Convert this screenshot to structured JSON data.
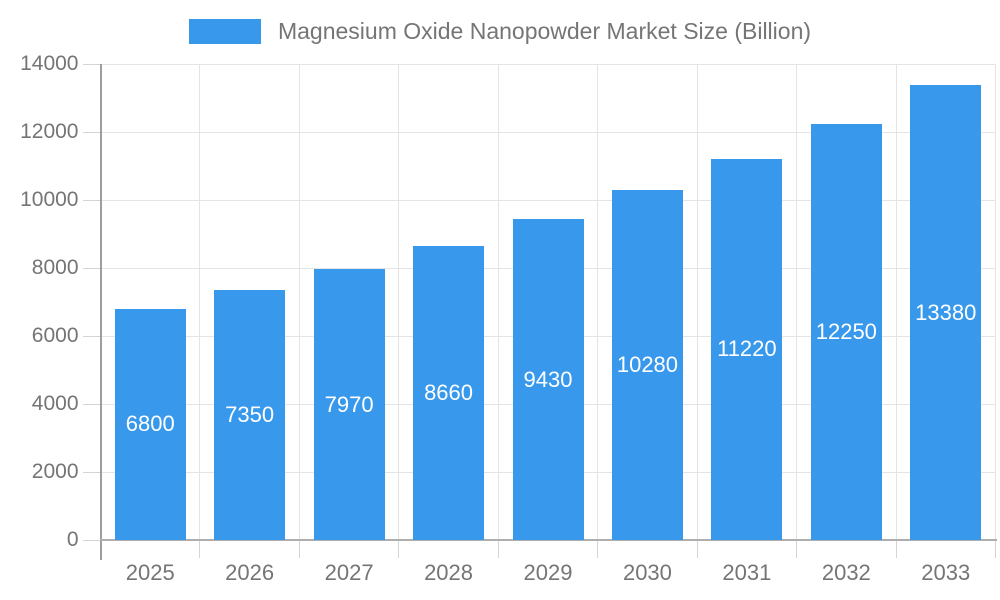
{
  "chart_data": {
    "type": "bar",
    "title": "Magnesium Oxide Nanopowder Market Size (Billion)",
    "categories": [
      "2025",
      "2026",
      "2027",
      "2028",
      "2029",
      "2030",
      "2031",
      "2032",
      "2033"
    ],
    "values": [
      6800,
      7350,
      7970,
      8660,
      9430,
      10280,
      11220,
      12250,
      13380
    ],
    "xlabel": "",
    "ylabel": "",
    "ylim": [
      0,
      14000
    ],
    "y_ticks": [
      0,
      2000,
      4000,
      6000,
      8000,
      10000,
      12000,
      14000
    ],
    "grid": "both",
    "legend_position": "top-center",
    "bar_color": "#3899ec",
    "bar_label_color": "#ffffff",
    "axis_text_color": "#757575",
    "gridline_color": "#e4e4e4",
    "background_color": "#ffffff"
  }
}
